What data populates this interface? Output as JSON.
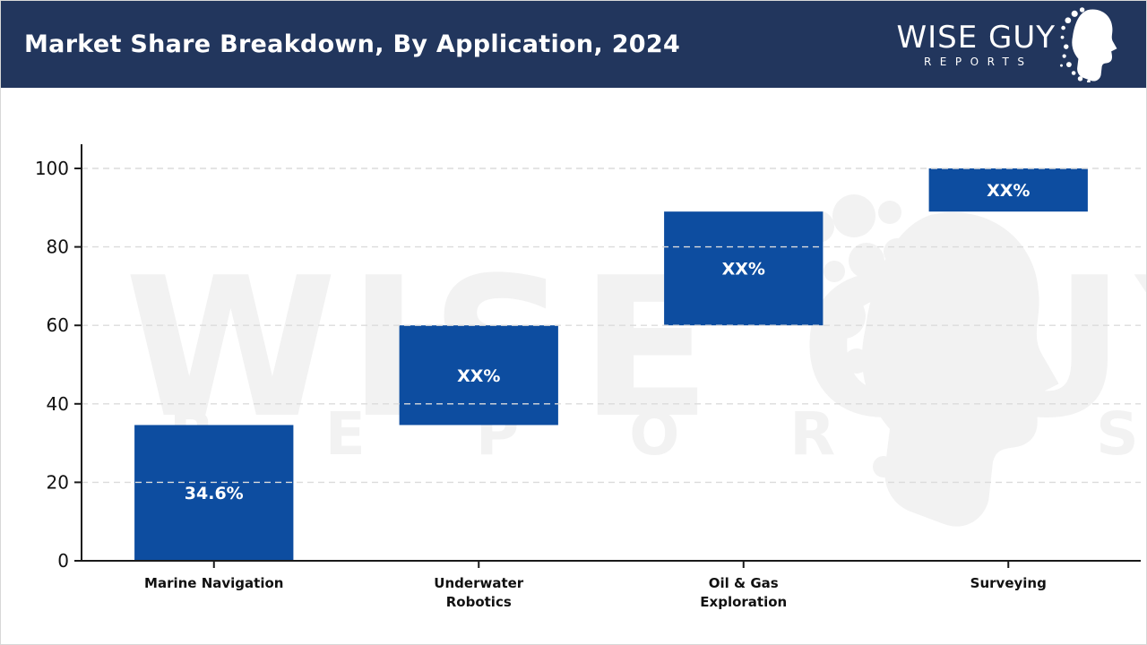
{
  "header": {
    "title": "Market Share Breakdown, By Application, 2024",
    "logo": {
      "name": "WISE GUY",
      "tagline": "REPORTS"
    }
  },
  "watermark": {
    "name": "WISE GUY",
    "tagline": "R E P O R T S"
  },
  "chart_data": {
    "type": "bar",
    "variant": "waterfall",
    "title": "Market Share Breakdown, By Application, 2024",
    "xlabel": "",
    "ylabel": "",
    "ylim": [
      0,
      105
    ],
    "yticks": [
      0,
      20,
      40,
      60,
      80,
      100
    ],
    "grid": "horizontal-dashed-over-bars",
    "legend": "none",
    "bar_color": "#0d4da0",
    "bars": [
      {
        "category": "Marine Navigation",
        "lines": [
          "Marine Navigation"
        ],
        "start": 0,
        "end": 34.6,
        "label": "34.6%"
      },
      {
        "category": "Underwater Robotics",
        "lines": [
          "Underwater",
          "Robotics"
        ],
        "start": 34.6,
        "end": 60,
        "label": "XX%"
      },
      {
        "category": "Oil & Gas Exploration",
        "lines": [
          "Oil & Gas",
          "Exploration"
        ],
        "start": 60,
        "end": 89,
        "label": "XX%"
      },
      {
        "category": "Surveying",
        "lines": [
          "Surveying"
        ],
        "start": 89,
        "end": 100,
        "label": "XX%"
      }
    ]
  }
}
